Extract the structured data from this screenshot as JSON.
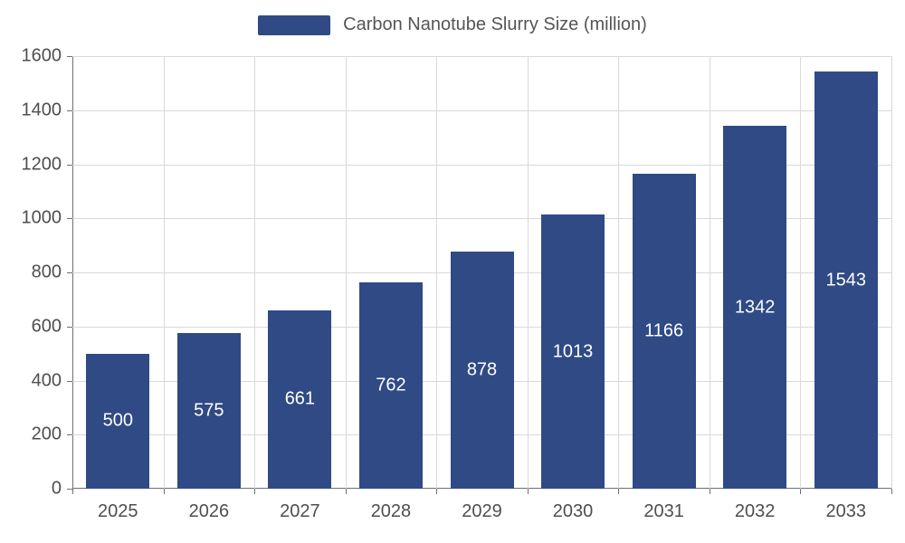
{
  "chart_data": {
    "type": "bar",
    "title": "Carbon Nanotube Slurry Size (million)",
    "legend": {
      "position": "top-center",
      "entries": [
        "Carbon Nanotube Slurry Size (million)"
      ]
    },
    "categories": [
      "2025",
      "2026",
      "2027",
      "2028",
      "2029",
      "2030",
      "2031",
      "2032",
      "2033"
    ],
    "values": [
      500,
      575,
      661,
      762,
      878,
      1013,
      1166,
      1342,
      1543
    ],
    "value_labels_visible": true,
    "value_label_position": "inside-center",
    "xlabel": "",
    "ylabel": "",
    "ylim": [
      0,
      1600
    ],
    "yticks": [
      0,
      200,
      400,
      600,
      800,
      1000,
      1200,
      1400,
      1600
    ],
    "grid": true,
    "colors": {
      "bar": "#2F4A85",
      "value_label": "#ffffff",
      "axis": "#6E7079",
      "gridline": "#d9d9d9",
      "title_text": "#555555",
      "tick_text": "#4E4E4E"
    }
  }
}
